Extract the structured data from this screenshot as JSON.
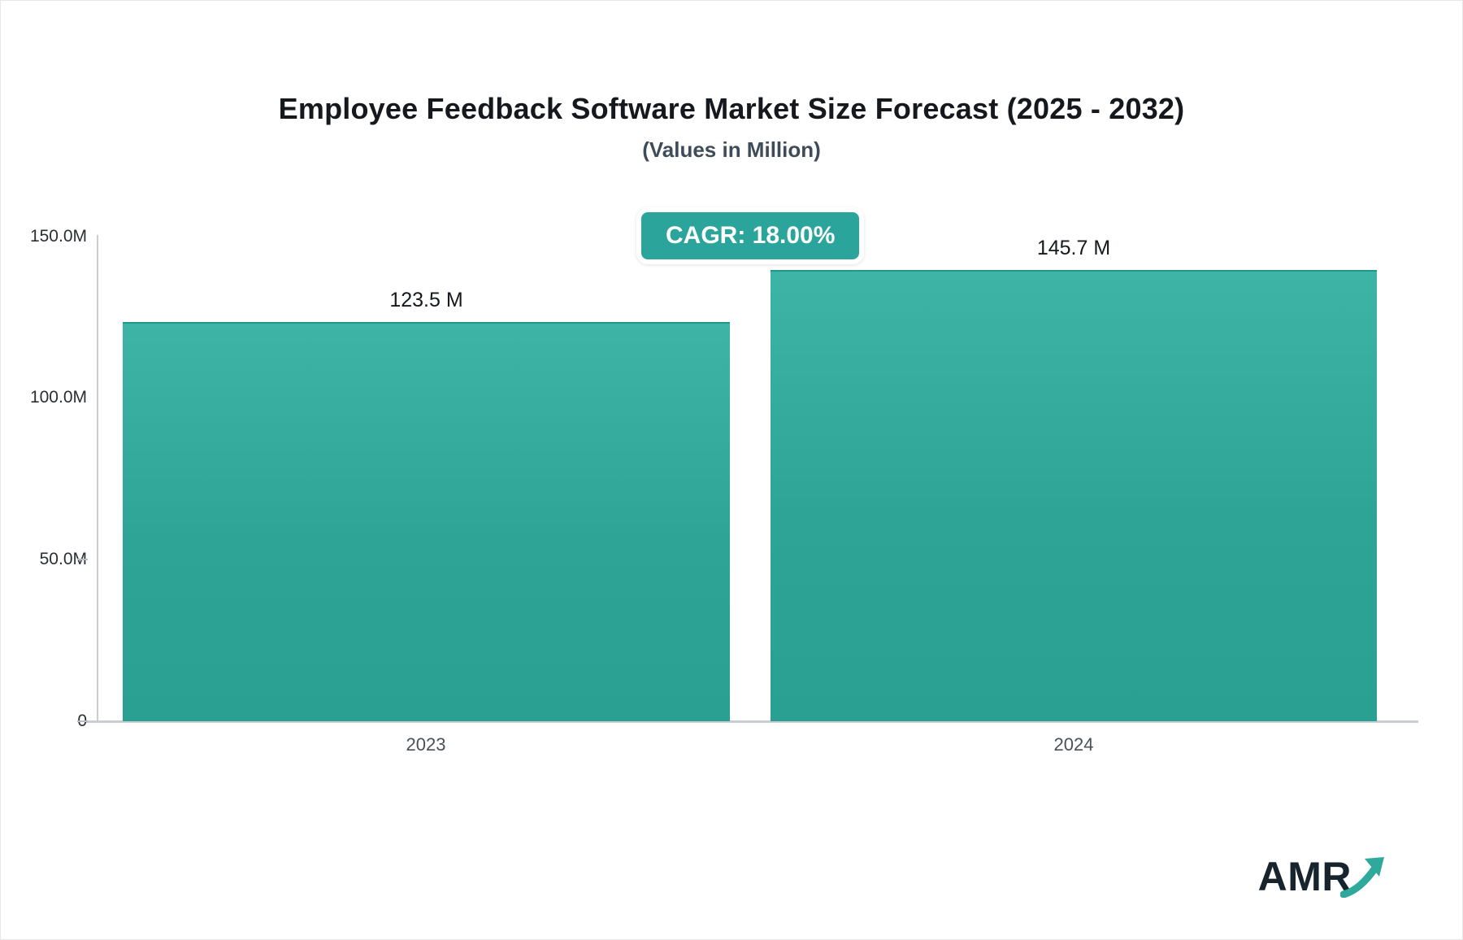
{
  "header": {
    "title": "Employee Feedback Software Market Size Forecast (2025 - 2032)",
    "subtitle": "(Values in Million)"
  },
  "badge": {
    "cagr_label": "CAGR: 18.00%"
  },
  "logo": {
    "text": "AMR"
  },
  "colors": {
    "bar_teal": "#2ea496",
    "badge_teal": "#2ba49b",
    "logo_arrow_teal": "#2fa99c"
  },
  "chart_data": {
    "type": "bar",
    "title": "Employee Feedback Software Market Size Forecast (2025 - 2032)",
    "subtitle": "(Values in Million)",
    "categories": [
      "2023",
      "2024"
    ],
    "values": [
      123.5,
      145.7
    ],
    "value_labels": [
      "123.5 M",
      "145.7 M"
    ],
    "unit": "Million",
    "xlabel": "",
    "ylabel": "",
    "ylim": [
      0,
      150
    ],
    "yticks": [
      {
        "value": 0,
        "label": "0"
      },
      {
        "value": 50,
        "label": "50.0M"
      },
      {
        "value": 100,
        "label": "100.0M"
      },
      {
        "value": 150,
        "label": "150.0M"
      }
    ],
    "grid": false,
    "legend": "none",
    "annotations": [
      "CAGR: 18.00%"
    ]
  }
}
